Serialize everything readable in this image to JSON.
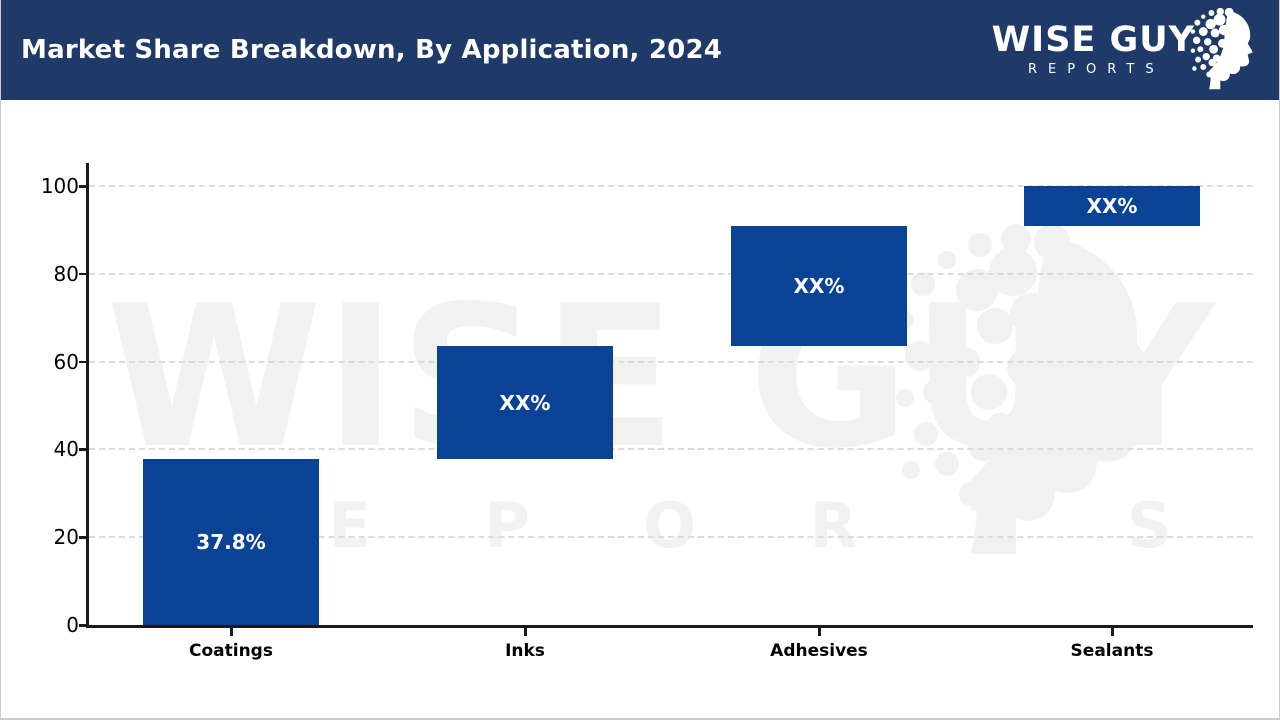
{
  "header": {
    "title": "Market Share Breakdown, By Application, 2024",
    "bg_color": "#1f3a68",
    "logo": {
      "line1": "WISE GUY",
      "line2": "REPORTS"
    }
  },
  "watermark": {
    "line1": "WISE GUY",
    "line2": "REPORTS"
  },
  "chart_data": {
    "type": "bar",
    "subtype": "waterfall",
    "title": "Market Share Breakdown, By Application, 2024",
    "categories": [
      "Coatings",
      "Inks",
      "Adhesives",
      "Sealants"
    ],
    "segments": [
      {
        "category": "Coatings",
        "start": 0,
        "end": 37.8,
        "label": "37.8%"
      },
      {
        "category": "Inks",
        "start": 37.8,
        "end": 63.5,
        "label": "XX%"
      },
      {
        "category": "Adhesives",
        "start": 63.5,
        "end": 91.0,
        "label": "XX%"
      },
      {
        "category": "Sealants",
        "start": 91.0,
        "end": 100,
        "label": "XX%"
      }
    ],
    "yticks": [
      0,
      20,
      40,
      60,
      80,
      100
    ],
    "ylim": [
      0,
      105
    ],
    "xlabel": "",
    "ylabel": "",
    "grid": "horizontal-dashed",
    "legend": "none",
    "bar_color": "#0a4296",
    "bar_label_color": "#ffffff"
  }
}
